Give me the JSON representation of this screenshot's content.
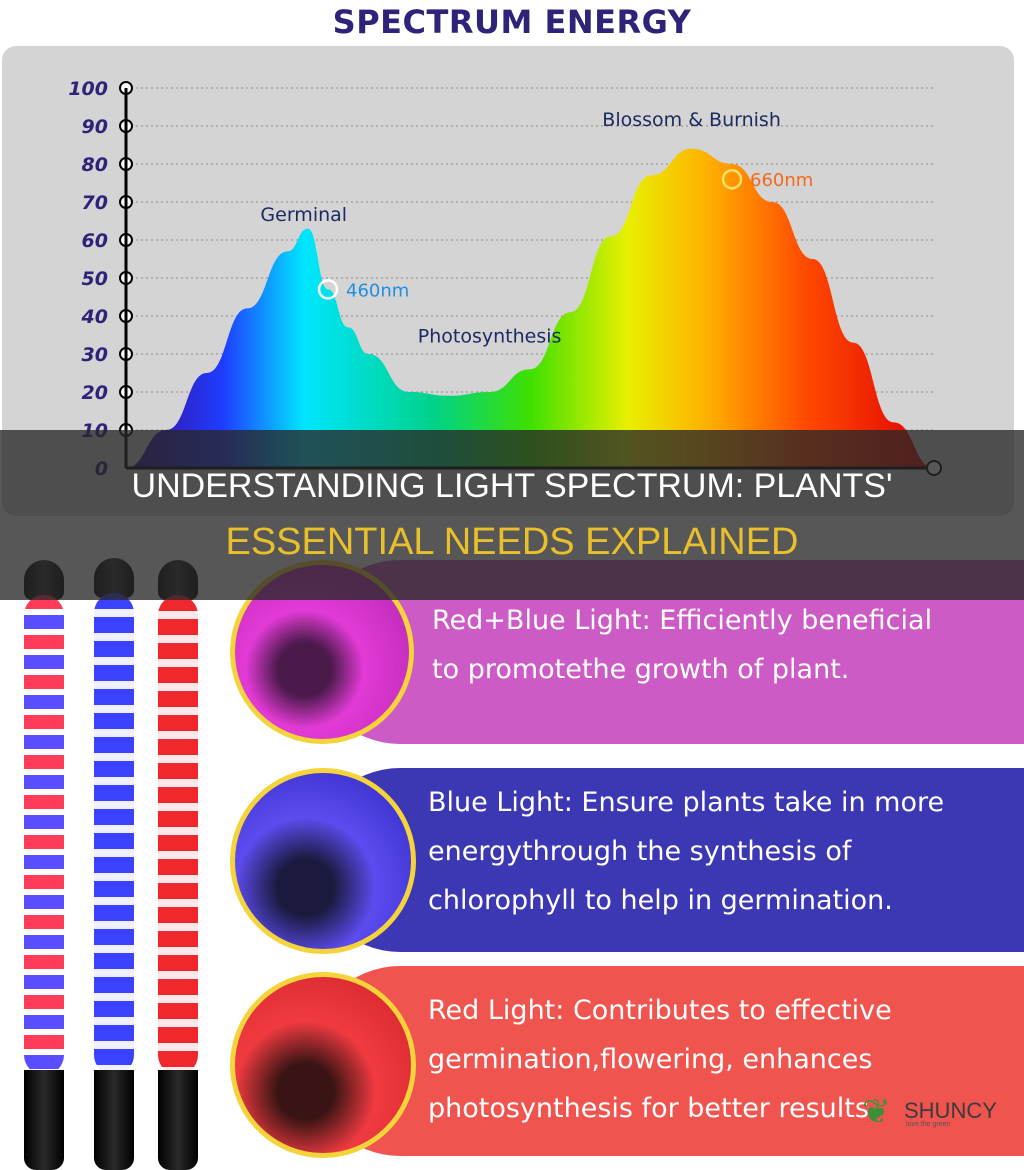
{
  "chart_data": {
    "type": "area",
    "title": "SPECTRUM ENERGY",
    "ylim": [
      0,
      100
    ],
    "y_ticks": [
      0,
      10,
      20,
      30,
      40,
      50,
      60,
      70,
      80,
      90,
      100
    ],
    "grid": true,
    "series": [
      {
        "x": [
          360,
          380,
          400,
          420,
          440,
          450,
          460,
          470,
          480,
          500,
          520,
          540,
          560,
          580,
          600,
          620,
          640,
          660,
          680,
          700,
          720,
          740,
          760
        ],
        "values": [
          0,
          10,
          25,
          42,
          57,
          63,
          47,
          37,
          30,
          20,
          19,
          20,
          26,
          41,
          61,
          77,
          84,
          80,
          70,
          55,
          33,
          12,
          0
        ]
      }
    ],
    "annotations": [
      {
        "label": "Germinal",
        "x": 448,
        "y": 65
      },
      {
        "label": "460nm",
        "x": 460,
        "y": 47
      },
      {
        "label": "Photosynthesis",
        "x": 540,
        "y": 33
      },
      {
        "label": "Blossom & Burnish",
        "x": 640,
        "y": 90
      },
      {
        "label": "660nm",
        "x": 660,
        "y": 76
      }
    ]
  },
  "headline": {
    "line1": "UNDERSTANDING LIGHT SPECTRUM: PLANTS'",
    "line2": "ESSENTIAL NEEDS EXPLAINED"
  },
  "cards": [
    {
      "lines": [
        "Red+Blue Light: Efficiently beneficial",
        "to promotethe growth of plant."
      ],
      "bg": "#cd5bc5"
    },
    {
      "lines": [
        "Blue Light: Ensure plants take in more",
        "energythrough the synthesis of",
        "chlorophyll to help in germination."
      ],
      "bg": "#3c37b3"
    },
    {
      "lines": [
        "Red Light: Contributes to effective",
        "germination,flowering, enhances",
        "photosynthesis for better results."
      ],
      "bg": "#f0544f"
    }
  ],
  "watermark": {
    "brand": "SHUNCY",
    "tagline": "love the green",
    "icon": "leaf-icon"
  }
}
